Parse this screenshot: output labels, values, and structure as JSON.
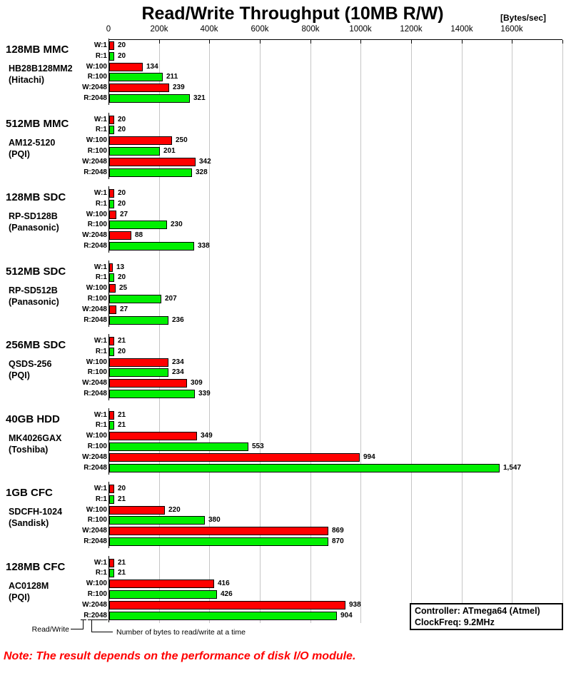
{
  "title": "Read/Write Throughput (10MB R/W)",
  "unit_label": "[Bytes/sec]",
  "note": "Note: The result depends on the performance of disk I/O module.",
  "note_color": "#FF0000",
  "info_box": {
    "line1": "Controller: ATmega64 (Atmel)",
    "line2": "ClockFreq: 9.2MHz"
  },
  "legend": {
    "read_write": "Read/Write",
    "bytes_at_a_time": "Number of bytes to read/write at a time"
  },
  "colors": {
    "write_bar": "#FF0000",
    "read_bar": "#00F000",
    "gridline": "#C6C6C6"
  },
  "chart_data": {
    "type": "bar",
    "orientation": "horizontal",
    "title": "Read/Write Throughput (10MB R/W)",
    "value_unit": "kBytes/sec",
    "axis": {
      "tick_labels": [
        "0",
        "200k",
        "400k",
        "600k",
        "800k",
        "1000k",
        "1200k",
        "1400k",
        "1600k"
      ],
      "tick_interval_k": 200,
      "axis_max_k": 1800,
      "grid": true
    },
    "row_labels": [
      "W:1",
      "R:1",
      "W:100",
      "R:100",
      "W:2048",
      "R:2048"
    ],
    "series_of_rows": [
      "write",
      "read",
      "write",
      "read",
      "write",
      "read"
    ],
    "groups": [
      {
        "name": "128MB MMC",
        "model": "HB28B128MM2",
        "maker": "(Hitachi)",
        "values": [
          20,
          20,
          134,
          211,
          239,
          321
        ],
        "labels": [
          "20",
          "20",
          "134",
          "211",
          "239",
          "321"
        ]
      },
      {
        "name": "512MB MMC",
        "model": "AM12-5120",
        "maker": "(PQI)",
        "values": [
          20,
          20,
          250,
          201,
          342,
          328
        ],
        "labels": [
          "20",
          "20",
          "250",
          "201",
          "342",
          "328"
        ]
      },
      {
        "name": "128MB SDC",
        "model": "RP-SD128B",
        "maker": "(Panasonic)",
        "values": [
          20,
          20,
          27,
          230,
          88,
          338
        ],
        "labels": [
          "20",
          "20",
          "27",
          "230",
          "88",
          "338"
        ]
      },
      {
        "name": "512MB SDC",
        "model": "RP-SD512B",
        "maker": "(Panasonic)",
        "values": [
          13,
          20,
          25,
          207,
          27,
          236
        ],
        "labels": [
          "13",
          "20",
          "25",
          "207",
          "27",
          "236"
        ]
      },
      {
        "name": "256MB SDC",
        "model": "QSDS-256",
        "maker": "(PQI)",
        "values": [
          21,
          20,
          234,
          234,
          309,
          339
        ],
        "labels": [
          "21",
          "20",
          "234",
          "234",
          "309",
          "339"
        ]
      },
      {
        "name": "40GB HDD",
        "model": "MK4026GAX",
        "maker": "(Toshiba)",
        "values": [
          21,
          21,
          349,
          553,
          994,
          1547
        ],
        "labels": [
          "21",
          "21",
          "349",
          "553",
          "994",
          "1,547"
        ]
      },
      {
        "name": "1GB CFC",
        "model": "SDCFH-1024",
        "maker": "(Sandisk)",
        "values": [
          20,
          21,
          220,
          380,
          869,
          870
        ],
        "labels": [
          "20",
          "21",
          "220",
          "380",
          "869",
          "870"
        ]
      },
      {
        "name": "128MB CFC",
        "model": "AC0128M",
        "maker": "(PQI)",
        "values": [
          21,
          21,
          416,
          426,
          938,
          904
        ],
        "labels": [
          "21",
          "21",
          "416",
          "426",
          "938",
          "904"
        ]
      }
    ]
  }
}
